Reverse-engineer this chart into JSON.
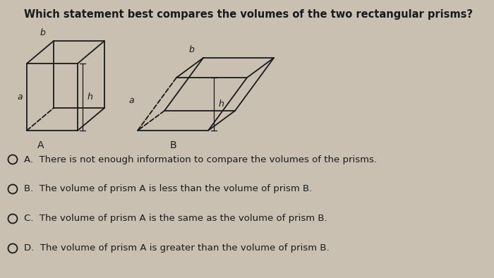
{
  "title": "Which statement best compares the volumes of the two rectangular prisms?",
  "title_fontsize": 10.5,
  "background_color": "#c9c0b2",
  "answer_A": "A.  There is not enough information to compare the volumes of the prisms.",
  "answer_B": "B.  The volume of prism A is less than the volume of prism B.",
  "answer_C": "C.  The volume of prism A is the same as the volume of prism B.",
  "answer_D": "D.  The volume of prism A is greater than the volume of prism B.",
  "label_A": "A",
  "label_B": "B",
  "prism_color": "#1a1a1a",
  "text_color": "#1a1a1a",
  "circle_color": "#1a1a1a"
}
